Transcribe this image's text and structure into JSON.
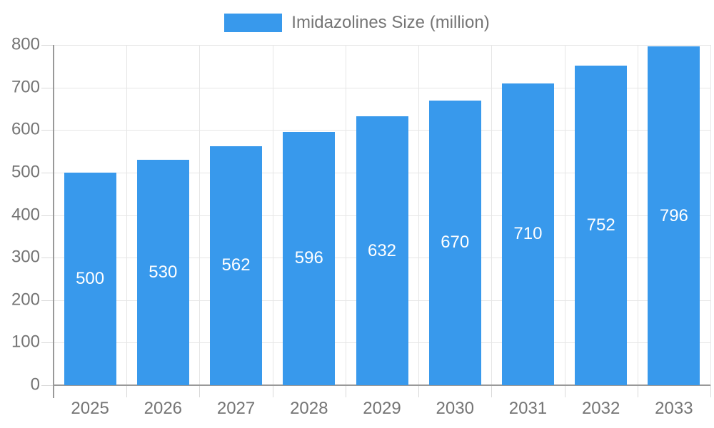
{
  "legend": {
    "label": "Imidazolines Size (million)",
    "position": "top"
  },
  "colors": {
    "bar": "#3899EC",
    "axis_text": "#757575",
    "value_label": "#ffffff",
    "grid": "#e6e6e6",
    "tick": "#d9d9d9",
    "axis_line": "#999999",
    "background": "#ffffff"
  },
  "chart_data": {
    "type": "bar",
    "title": "Imidazolines Size (million)",
    "series_name": "Imidazolines Size (million)",
    "categories": [
      "2025",
      "2026",
      "2027",
      "2028",
      "2029",
      "2030",
      "2031",
      "2032",
      "2033"
    ],
    "values": [
      500,
      530,
      562,
      596,
      632,
      670,
      710,
      752,
      796
    ],
    "xlabel": "",
    "ylabel": "",
    "ylim": [
      0,
      800
    ],
    "ytick_step": 100,
    "ytick_labels": [
      "0",
      "100",
      "200",
      "300",
      "400",
      "500",
      "600",
      "700",
      "800"
    ],
    "grid": true,
    "legend_position": "top",
    "value_label_position": "inside-center"
  }
}
